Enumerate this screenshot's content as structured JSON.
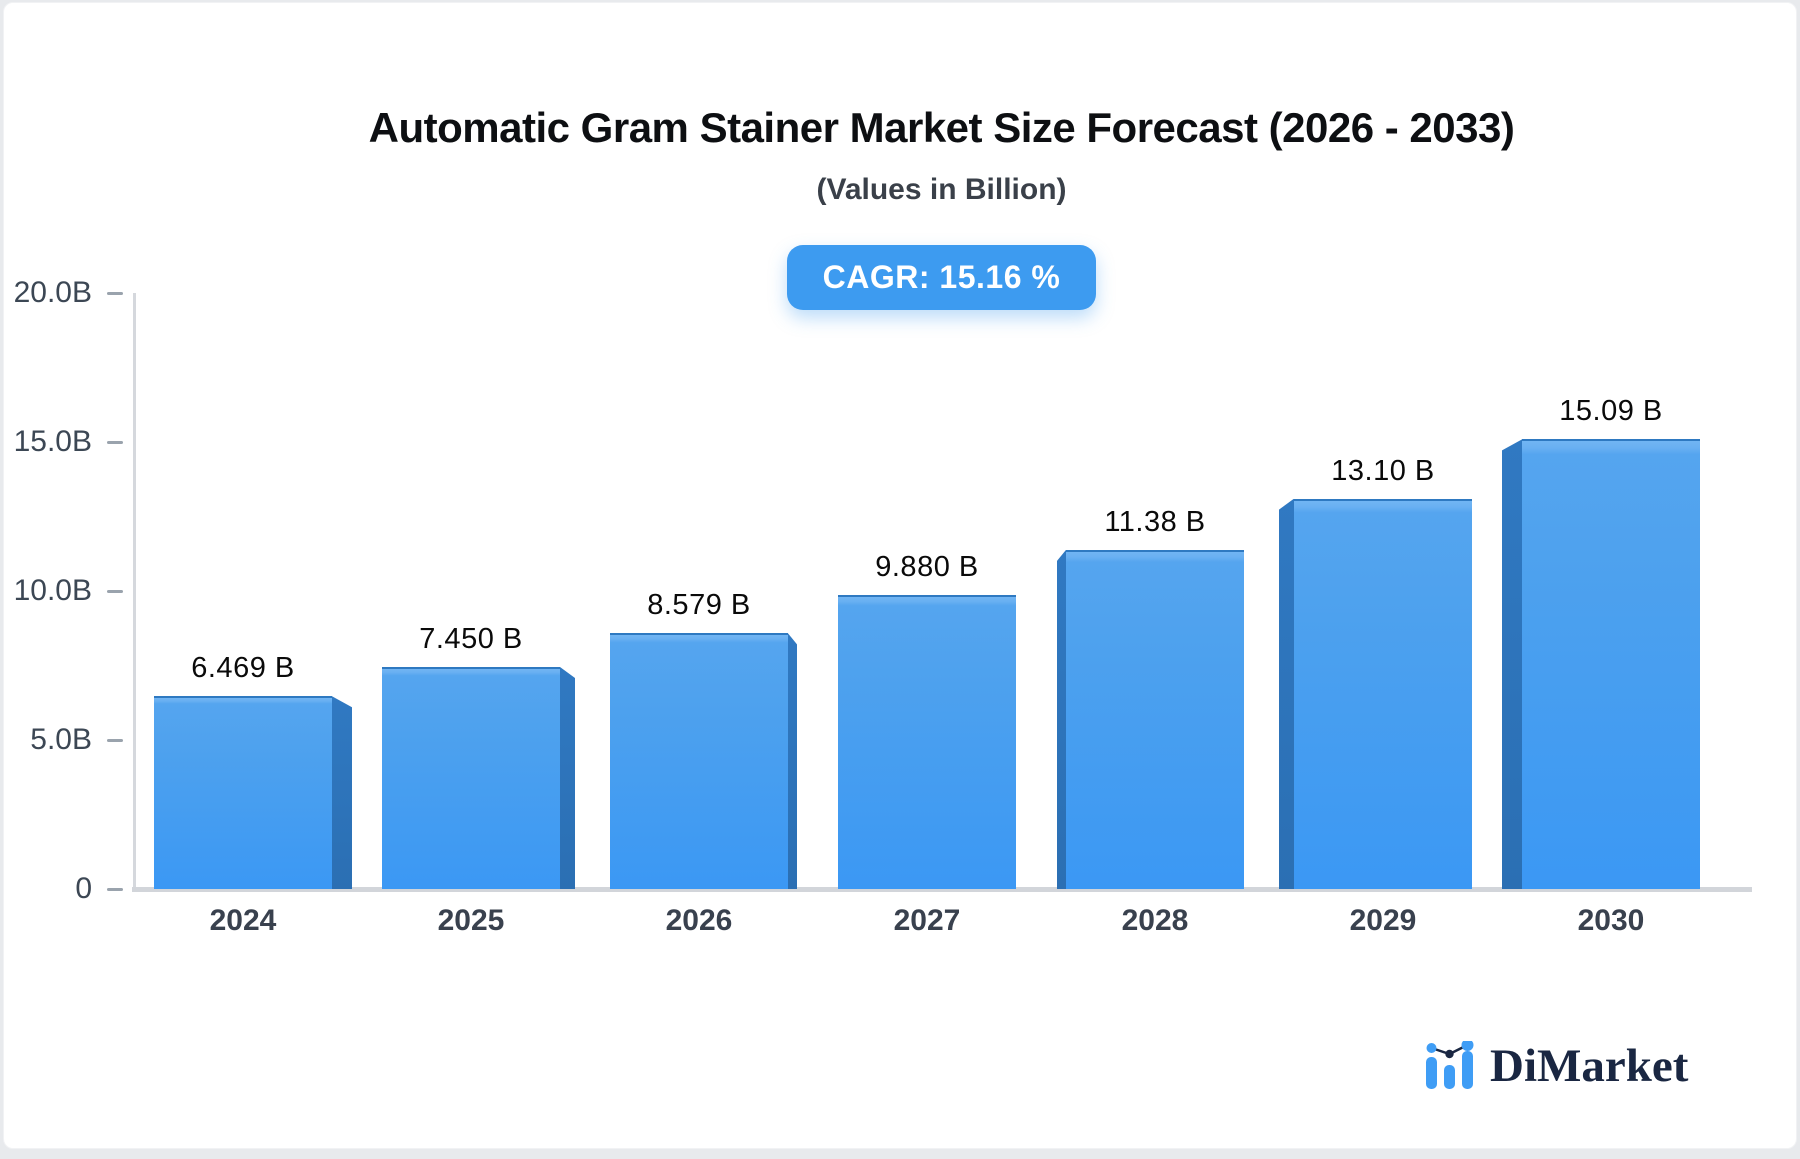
{
  "header": {
    "title": "Automatic Gram Stainer Market Size Forecast (2026 - 2033)",
    "subtitle": "(Values in Billion)",
    "cagr_label": "CAGR: 15.16 %"
  },
  "chart_data": {
    "type": "bar",
    "title": "Automatic Gram Stainer Market Size Forecast (2026 - 2033)",
    "subtitle": "(Values in Billion)",
    "unit": "Billion",
    "categories": [
      "2024",
      "2025",
      "2026",
      "2027",
      "2028",
      "2029",
      "2030"
    ],
    "values": [
      6.469,
      7.45,
      8.579,
      9.88,
      11.38,
      13.1,
      15.09
    ],
    "value_labels": [
      "6.469 B",
      "7.450 B",
      "8.579 B",
      "9.880 B",
      "11.38 B",
      "13.10 B",
      "15.09 B"
    ],
    "xlabel": "",
    "ylabel": "",
    "ylim": [
      0,
      20
    ],
    "yticks": [
      {
        "value": 20,
        "label": "20.0B"
      },
      {
        "value": 15,
        "label": "15.0B"
      },
      {
        "value": 10,
        "label": "10.0B"
      },
      {
        "value": 5,
        "label": "5.0B"
      },
      {
        "value": 0,
        "label": "0"
      }
    ],
    "grid": false,
    "legend": "none",
    "cagr_percent": 15.16
  },
  "footer": {
    "brand": "DiMarket"
  },
  "colors": {
    "bar_face_top": "#71b5f3",
    "bar_face_bottom": "#3b98f4",
    "bar_top_edge": "#2e79c1",
    "bar_side_facet": "#2e76bc",
    "badge_bg": "#3d9bf0",
    "badge_text": "#ffffff",
    "axis_line": "#d5d8dd",
    "axis_text": "#3c4754",
    "title_text": "#0d0f12",
    "logo_navy": "#1a2742",
    "logo_blue": "#3f9df5",
    "card_bg": "#ffffff",
    "page_bg": "#e8eaed"
  }
}
